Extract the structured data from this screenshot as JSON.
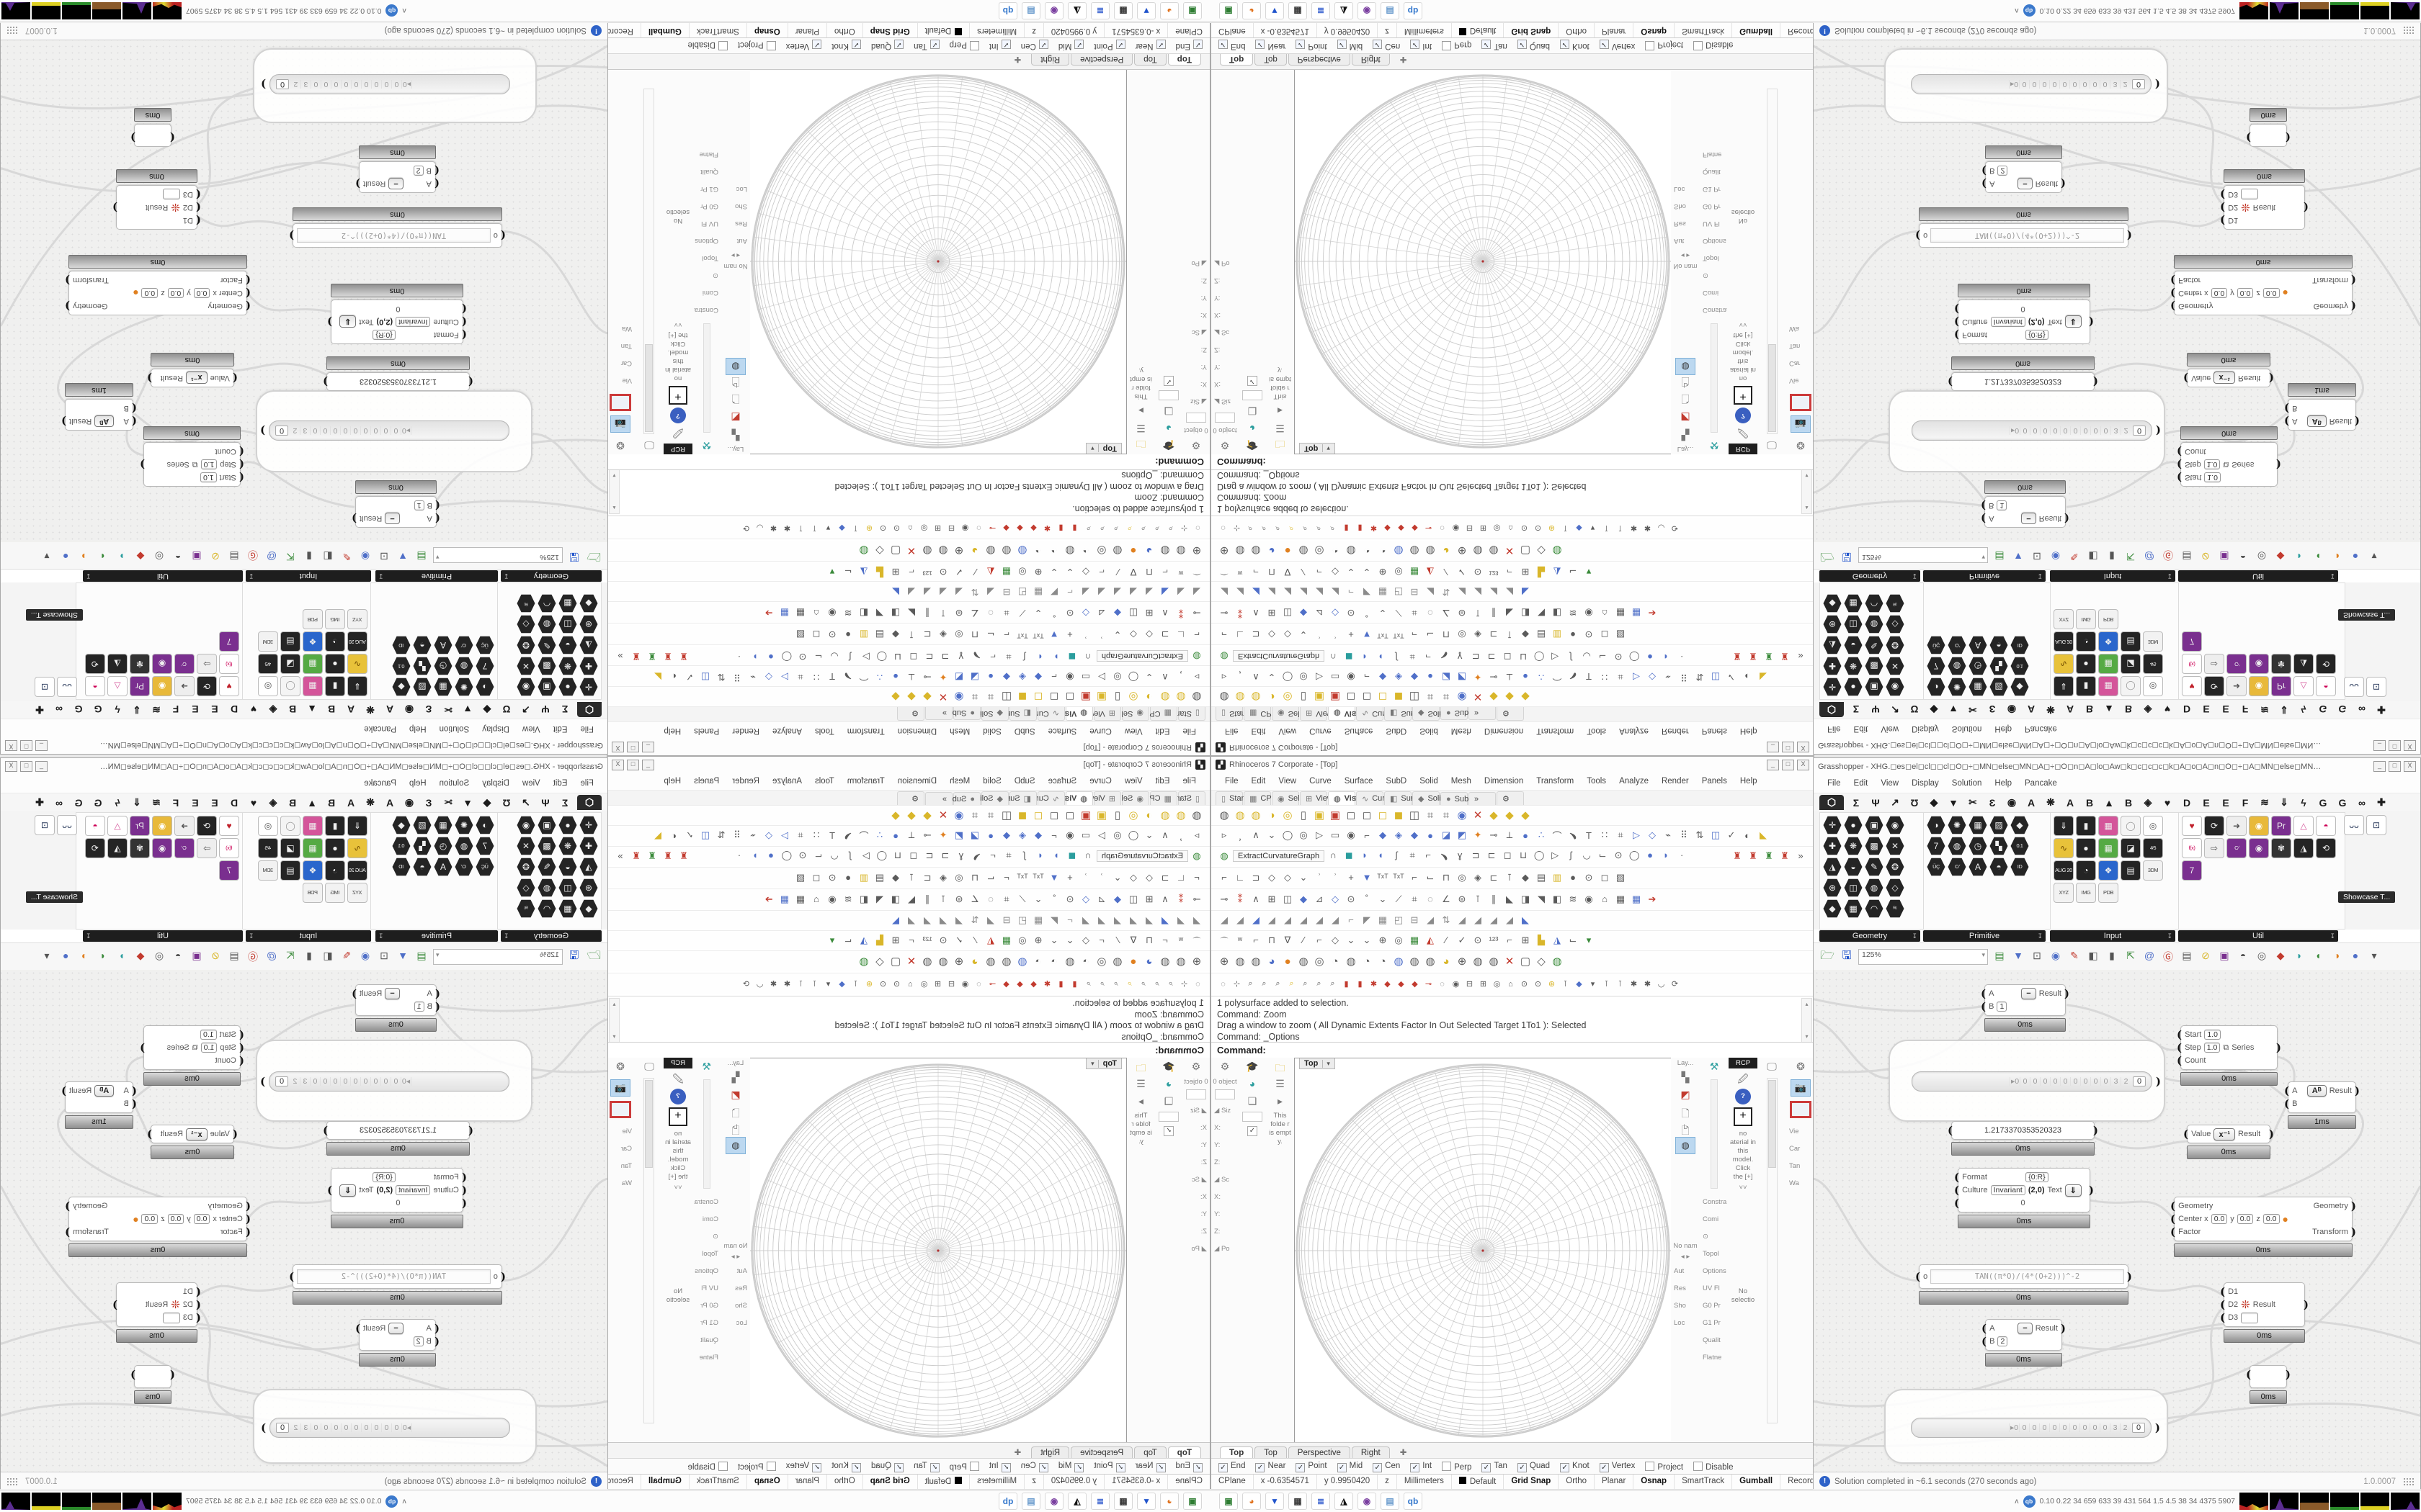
{
  "colors": {
    "b": "#4f6fc8",
    "y": "#d9b62a",
    "r": "#c23a2e",
    "g": "#3a8a3a",
    "o": "#e08020",
    "p": "#7a2f8f",
    "t": "#2a9d9d",
    "k": "#111111",
    "w": "#888888",
    "accent_blue": "#3b79cc",
    "panel_dark": "#1e1e1e",
    "status_enabled": "#111111",
    "wire": "#d8d8d8",
    "sphere_line": "#cbcbcb"
  },
  "rhino": {
    "title": "Rhinoceros 7 Corporate - [Top]",
    "window_buttons": {
      "min": "_",
      "max": "□",
      "close": "X"
    },
    "menu": [
      "File",
      "Edit",
      "View",
      "Curve",
      "Surface",
      "SubD",
      "Solid",
      "Mesh",
      "Dimension",
      "Transform",
      "Tools",
      "Analyze",
      "Render",
      "Panels",
      "Help"
    ],
    "toolbar_tabs": [
      {
        "pre": "▯",
        "t": "Standard"
      },
      {
        "pre": "▦",
        "t": "CPlanes"
      },
      {
        "pre": "◉",
        "t": "Select"
      },
      {
        "pre": "⊞",
        "t": "Viewport Layout"
      },
      {
        "pre": "◍",
        "t": "Visibility",
        "cls": "active"
      },
      {
        "pre": "∿",
        "t": "Curve Tools"
      },
      {
        "pre": "◧",
        "t": "Surface Tools"
      },
      {
        "pre": "◆",
        "t": "Solid Tools"
      },
      {
        "pre": "●",
        "t": "SubD"
      },
      {
        "t": "»"
      },
      {
        "t": "⚙"
      }
    ],
    "icon_rows": {
      "bulbs": [
        "◍",
        "y:◍",
        "y:◍",
        "y:◑",
        "y:◎",
        "▯",
        "y:▣",
        "r:▣",
        "◻",
        "◻",
        "y:◻",
        "y:◼",
        "◫",
        "⌗",
        "⌗",
        "b:◉",
        "r:✕",
        "y:◆",
        "y:◆",
        "y:◆"
      ],
      "rowA": [
        "▹",
        "﹐",
        "∧",
        "⌄",
        "◯",
        "◎",
        "▷",
        "▭",
        "◉",
        "⌐",
        "b:◆",
        "b:◈",
        "b:◆",
        "b:●",
        "b:◪",
        "b:◩",
        "o:✦",
        "⊸",
        "⟂",
        "b:●",
        "b:∴",
        "⌒",
        "﹅",
        "T",
        "∷",
        "⌗",
        "b:▷",
        "b:◇",
        "⌁",
        "⠿",
        "⇅",
        "b:◫",
        "✓",
        "◐",
        "y:◣"
      ],
      "rowB": [
        "∩",
        "t:◼",
        "b:◗",
        "b:◖",
        "ʃ",
        "⌗",
        "⌐",
        "﹅",
        "ɣ",
        "⊐",
        "⊏",
        "◻",
        "⊔",
        "◯",
        "▷",
        "ʃ",
        "◡",
        "⌙",
        "⊙",
        "◯",
        "b:●",
        "b:◗",
        "·"
      ],
      "rowB_end": [
        "r:♜",
        "r:♜",
        "g:♜",
        "r:♜",
        "»"
      ],
      "rowC": [
        "⌐",
        "∟",
        "⊐",
        "◇",
        "◇",
        "⌄",
        "ʾ",
        "ʾ",
        "+",
        "b:▼",
        "ᵀˣᵀ",
        "ᵀˣᵀ",
        "⌐",
        "⌙",
        "⊓",
        "◎",
        "◈",
        "⊏",
        "⊺",
        "◆",
        "▤",
        "y:▥",
        "●",
        "⊙",
        "◻",
        "▧"
      ],
      "rowD": [
        "⊸",
        "r:⁑",
        "∧",
        "⊞",
        "◫",
        "b:◆",
        "⊿",
        "b:◇",
        "⊙",
        "˚",
        "⌄",
        "⟋",
        "⌗",
        "◌",
        "∠",
        "⊜",
        "⊺",
        "∥",
        "◣",
        "◨",
        "◥",
        "◧",
        "≋",
        "◉",
        "⌂",
        "▦",
        "b:▦",
        "r:➔"
      ],
      "rowE": [
        "◢",
        "◢",
        "b:◢",
        "◢",
        "◢",
        "◢",
        "◢",
        "◢",
        "⌐",
        "◤",
        "▦",
        "◰",
        "⊟",
        "◢",
        "⇅",
        "◢",
        "◢",
        "◢",
        "◢",
        "b:◣"
      ],
      "rowF": [
        "᷍",
        "ʷ",
        "⌐",
        "⊓",
        "∇",
        "⁄",
        "⌐",
        "◇",
        "⌄",
        "⌄",
        "⊕",
        "◎",
        "g:▦",
        "r:◭",
        "⁄",
        "✓",
        "⊙",
        "¹²³",
        "⌐",
        "⊞",
        "y:▙",
        "b:◮",
        "⌙",
        "g:▾"
      ],
      "rowG": [
        "⊕",
        "◍",
        "◍",
        "b:◕",
        "o:●",
        "◍",
        "◎",
        "◔",
        "◍",
        "◔",
        "◔",
        "b:◍",
        "◍",
        "◍",
        "y:◕",
        "⊕",
        "◍",
        "◍",
        "r:✕",
        "▢",
        "◇",
        "g:◍"
      ],
      "rowH": [
        "◌",
        "⊹",
        "⌕",
        "⌕",
        "⌕",
        "y:⌕",
        "⌕",
        "⌕",
        "⌕",
        "r:▮",
        "r:▮",
        "r:✱",
        "r:◆",
        "r:◆",
        "r:◆",
        "r:⊸",
        "◌",
        "◉",
        "⊟",
        "⊞",
        "◎",
        "⌂",
        "⊙",
        "⊙",
        "y:⊛",
        "⊺",
        "b:◆",
        "▾",
        "⊺",
        "⊺",
        "✱",
        "✱",
        "◡",
        "⟳"
      ]
    },
    "ecg_label": "ExtractCurvatureGraph",
    "command": {
      "history": [
        "1 polysurface added to selection.",
        "Command: Zoom",
        "Drag a window to zoom ( All  Dynamic  Extents  Factor  In  Out  Selected  Target  1To1 ): Selected",
        "Command: _Options"
      ],
      "prompt": "Command:"
    },
    "left_panels": {
      "p1_header": "0 object",
      "p1_rows": [
        "◢ Siz",
        "X:",
        "Y:",
        "Z:",
        "◢ Sc",
        "X:",
        "Y:",
        "Z:",
        "◢ Po"
      ],
      "p2_check": "✓",
      "p3_text": "This folde r is empt y."
    },
    "right_panels": {
      "rp1_title": "Lay...",
      "rp1_l": "L",
      "rp1_noname": "No nam",
      "rp1_checks": [
        "Aut",
        "Res",
        "Sho",
        "Loc"
      ],
      "rp2_rows": [
        "Constra",
        "Comi",
        "⊙",
        "Topol",
        "Options",
        "UV Fl",
        "G0 Pr",
        "G1 Pr",
        "Qualit",
        "Flatne"
      ],
      "rp3_title": "RCP",
      "rp3_note": "no aterial in this model. Click the [+]",
      "rp3_more": "˅˅",
      "rp3_sel": "No selectio",
      "rp5_rows": [
        "Vie",
        "Car",
        "Tan",
        "Wa"
      ],
      "name_chip": "name"
    },
    "viewport": {
      "tab": "Top",
      "tab_caret": "▾"
    },
    "viewport_tabs": [
      {
        "t": "Top",
        "cls": "active"
      },
      {
        "t": "Top"
      },
      {
        "t": "Perspective"
      },
      {
        "t": "Right"
      },
      {
        "t": "✚",
        "cls": "plus"
      }
    ],
    "osnap": [
      {
        "t": "End",
        "cls": "on"
      },
      {
        "t": "Near",
        "cls": "on"
      },
      {
        "t": "Point",
        "cls": "on"
      },
      {
        "t": "Mid",
        "cls": "on"
      },
      {
        "t": "Cen",
        "cls": "on"
      },
      {
        "t": "Int",
        "cls": "on"
      },
      {
        "t": "Perp"
      },
      {
        "t": "Tan",
        "cls": "on"
      },
      {
        "t": "Quad",
        "cls": "on"
      },
      {
        "t": "Knot",
        "cls": "on"
      },
      {
        "t": "Vertex",
        "cls": "on"
      },
      {
        "t": "Project"
      },
      {
        "t": "Disable"
      }
    ],
    "status_fields": [
      {
        "t": "CPlane"
      },
      {
        "t": "x -0.6354571"
      },
      {
        "t": "y 0.9950420"
      },
      {
        "t": "z"
      },
      {
        "t": "Millimeters"
      },
      {
        "t": "Default",
        "cls": "swatch"
      },
      {
        "t": "Grid Snap",
        "cls": "bold"
      },
      {
        "t": "Ortho"
      },
      {
        "t": "Planar"
      },
      {
        "t": "Osnap",
        "cls": "bold"
      },
      {
        "t": "SmartTrack"
      },
      {
        "t": "Gumball",
        "cls": "bold"
      },
      {
        "t": "Record History"
      },
      {
        "t": "Filter"
      },
      {
        "t": "A"
      }
    ]
  },
  "gh": {
    "title": "Grasshopper - XHG.◻es◻el◻cl◻◻cl◻O◻÷◻MN◻else◻MN◻A◻÷◻O◻n◻A◻lo◻Aw◻k◻c◻c◻c◻k◻A◻o◻A◻n◻O◻÷◻A◻MN◻else◻MN◻÷◻O◻cl◻w◻cl◻n◻seles◻*",
    "menu": [
      "File",
      "Edit",
      "View",
      "Display",
      "Solution",
      "Help",
      "Pancake"
    ],
    "tab_glyphs": [
      {
        "t": "⬡",
        "cls": "active"
      },
      {
        "t": "Σ"
      },
      {
        "t": "Ψ"
      },
      {
        "t": "↗"
      },
      {
        "t": "Ʊ"
      },
      {
        "t": "◆"
      },
      {
        "t": "▼"
      },
      {
        "t": "✂"
      },
      {
        "t": "Ɛ"
      },
      {
        "t": "◉"
      },
      {
        "t": "A"
      },
      {
        "t": "❋"
      },
      {
        "t": "A"
      },
      {
        "t": "B"
      },
      {
        "t": "▲"
      },
      {
        "t": "B"
      },
      {
        "t": "◈"
      },
      {
        "t": "♥"
      },
      {
        "t": "D"
      },
      {
        "t": "E"
      },
      {
        "t": "E"
      },
      {
        "t": "F"
      },
      {
        "t": "≋"
      },
      {
        "t": "⇓"
      },
      {
        "t": "ϟ"
      },
      {
        "t": "G"
      },
      {
        "t": "G"
      },
      {
        "t": "∞"
      },
      {
        "t": "✚"
      }
    ],
    "palette": {
      "geometry": [
        {
          "t": "✛",
          "cls": "hex"
        },
        {
          "t": "●",
          "cls": "hex"
        },
        {
          "t": "▣",
          "cls": "hex"
        },
        {
          "t": "◉",
          "cls": "hex"
        },
        {
          "t": "✚",
          "cls": "hex"
        },
        {
          "t": "❋",
          "cls": "hex"
        },
        {
          "t": "▩",
          "cls": "hex"
        },
        {
          "t": "✕",
          "cls": "hex"
        },
        {
          "t": "◮",
          "cls": "hex"
        },
        {
          "t": "◒",
          "cls": "hex"
        },
        {
          "t": "✎",
          "cls": "hex"
        },
        {
          "t": "❂",
          "cls": "hex"
        },
        {
          "t": "⊛",
          "cls": "hex"
        },
        {
          "t": "◫",
          "cls": "hex"
        },
        {
          "t": "◍",
          "cls": "hex"
        },
        {
          "t": "◇",
          "cls": "hex"
        },
        {
          "t": "◆",
          "cls": "hex"
        },
        {
          "t": "▦",
          "cls": "hex"
        },
        {
          "t": "◠",
          "cls": "hex"
        },
        {
          "t": "ᴿᶜ",
          "cls": "hex small"
        }
      ],
      "primitive": [
        {
          "t": "◑",
          "cls": "hex"
        },
        {
          "t": "✺",
          "cls": "hex"
        },
        {
          "t": "▦",
          "cls": "hex"
        },
        {
          "t": "▨",
          "cls": "hex"
        },
        {
          "t": "◆",
          "cls": "hex"
        },
        {
          "t": "7",
          "cls": "hex"
        },
        {
          "t": "◍",
          "cls": "hex"
        },
        {
          "t": "◷",
          "cls": "hex"
        },
        {
          "t": "▚",
          "cls": "hex"
        },
        {
          "t": "0.1",
          "cls": "hex small"
        },
        {
          "t": "ÜÇ",
          "cls": "hex small"
        },
        {
          "t": "C∕",
          "cls": "hex small"
        },
        {
          "t": "A",
          "cls": "hex"
        },
        {
          "t": "◓",
          "cls": "hex"
        },
        {
          "t": "ID",
          "cls": "hex small"
        }
      ],
      "input": [
        {
          "t": "⇓",
          "cls": "sq"
        },
        {
          "t": "▮",
          "cls": "sq"
        },
        {
          "t": "▦",
          "cls": "sq",
          "bg": "#d4559a"
        },
        {
          "t": "◯",
          "cls": "sq",
          "bg": "#f4f4f4",
          "c": "#999999"
        },
        {
          "t": "◎",
          "cls": "sq",
          "bg": "#ffffff",
          "c": "#555555"
        },
        {
          "t": "∿",
          "cls": "sq",
          "bg": "#e8c23a",
          "c": "#704c00"
        },
        {
          "t": "●",
          "cls": "sq"
        },
        {
          "t": "▦",
          "cls": "sq",
          "bg": "#55aa44"
        },
        {
          "t": "◪",
          "cls": "sq"
        },
        {
          "t": "4∕5",
          "cls": "sq small"
        },
        {
          "t": "AUG 20",
          "cls": "sq small"
        },
        {
          "t": "◔",
          "cls": "sq"
        },
        {
          "t": "❖",
          "cls": "sq",
          "bg": "#2a66cc"
        },
        {
          "t": "▤",
          "cls": "sq"
        },
        {
          "t": "3DM",
          "cls": "sq small",
          "bg": "#f2f2f2",
          "c": "#444444"
        },
        {
          "t": "XYZ",
          "cls": "sq small",
          "bg": "#f2f2f2",
          "c": "#444444"
        },
        {
          "t": "IMG",
          "cls": "sq small",
          "bg": "#f2f2f2",
          "c": "#444444"
        },
        {
          "t": "PDB",
          "cls": "sq small",
          "bg": "#f2f2f2",
          "c": "#444444"
        }
      ],
      "util": [
        {
          "t": "♥",
          "cls": "sq",
          "bg": "#ffffff",
          "c": "#c0202a"
        },
        {
          "t": "⟳",
          "cls": "sq"
        },
        {
          "t": "➜",
          "cls": "sq",
          "bg": "#eeeeee",
          "c": "#555555"
        },
        {
          "t": "◉",
          "cls": "sq",
          "bg": "#e8b93a",
          "c": "#ffffff"
        },
        {
          "t": "Pr",
          "cls": "sq",
          "bg": "#7a2f8f"
        },
        {
          "t": "△",
          "cls": "sq",
          "bg": "#ffffff",
          "c": "#d4559a"
        },
        {
          "t": "◓",
          "cls": "sq",
          "bg": "#ffffff",
          "c": "#cc0055"
        },
        {
          "t": "f(x)",
          "cls": "sq small",
          "bg": "#ffffff",
          "c": "#cc0055"
        },
        {
          "t": "⇨",
          "cls": "sq",
          "bg": "#eeeeee",
          "c": "#555555"
        },
        {
          "t": "C∕",
          "cls": "sq small",
          "bg": "#7a2f8f"
        },
        {
          "t": "◉",
          "cls": "sq",
          "bg": "#7a2f8f"
        },
        {
          "t": "✾",
          "cls": "sq",
          "bg": "#333333"
        },
        {
          "t": "◮",
          "cls": "sq"
        },
        {
          "t": "⟲",
          "cls": "sq"
        },
        {
          "t": "7",
          "cls": "sq",
          "bg": "#7a2f8f"
        }
      ],
      "showcase": [
        {
          "t": "ᴗᴗ",
          "cls": "sq",
          "bg": "#ffffff",
          "c": "#223355"
        },
        {
          "t": "⊡",
          "cls": "sq",
          "bg": "#ffffff",
          "c": "#223355"
        }
      ],
      "labels": [
        "Geometry",
        "Primitive",
        "Input",
        "Util"
      ],
      "showcase_badge": "Showcase T..."
    },
    "toolbar": {
      "zoom": "125%",
      "icons": [
        "g:▤",
        "b:▼",
        "⊡",
        "b:◉",
        "r:✎",
        "◧",
        "▮",
        "g:⇱",
        "b:@",
        "r:Ⓖ",
        "▤",
        "y:⊘",
        "p:▣",
        "◓",
        "◎",
        "r:◆",
        "t:◗",
        "g:◖",
        "o:◑",
        "b:●",
        "▾"
      ]
    },
    "nodes": {
      "sub1": {
        "a": "A",
        "b": "B",
        "bval": "1",
        "op": "−",
        "out": "Result",
        "ms": "0ms"
      },
      "sub2": {
        "a": "A",
        "b": "B",
        "bval": "2",
        "op": "−",
        "out": "Result",
        "ms": "0ms"
      },
      "series": {
        "in1": "Start",
        "v1": "1.0",
        "in2": "Step",
        "v2": "1.0",
        "in3": "Count",
        "icon": "⧉",
        "out": "Series",
        "ms": "0ms"
      },
      "power": {
        "a": "A",
        "b": "B",
        "icon": "Aᴮ",
        "out": "Result",
        "ms": "1ms"
      },
      "value_panel": {
        "text": "1.2173370353520323",
        "ms": "0ms"
      },
      "inverse": {
        "in": "Value",
        "icon": "x⁻¹",
        "out": "Result",
        "ms": "0ms"
      },
      "format": {
        "f": "Format",
        "fval": "{0:R}",
        "c": "Culture",
        "cval": "Invariant",
        "extra": "(2,0)",
        "t": "Text",
        "ticon": "⇓",
        "zero": "0",
        "ms": "0ms"
      },
      "scale": {
        "in1": "Geometry",
        "cpre": "Center x",
        "v1": "0.0",
        "vy": "y",
        "v2": "0.0",
        "vz": "z",
        "v3": "0.0",
        "icon": "●",
        "in3": "Factor",
        "out1": "Geometry",
        "out2": "Transform",
        "ms": "0ms"
      },
      "expr": {
        "in": "o",
        "text": "TAN((π*O)/(4*(O+2)))^-2",
        "ms": "0ms"
      },
      "disp": {
        "d1": "D1",
        "d2": "D2",
        "d3": "D3",
        "icon": "❊",
        "out": "Result",
        "ms": "0ms"
      },
      "tiny": {
        "ms": "0ms"
      },
      "slider": {
        "digits": [
          "▸0",
          "0",
          "0",
          "0",
          "0",
          "0",
          "0",
          "0",
          "0",
          "0",
          "3",
          "2"
        ],
        "last": "0"
      }
    },
    "status": {
      "message": "Solution completed in ~6.1 seconds (270 seconds ago)",
      "version": "1.0.0007",
      "info": "!"
    }
  },
  "taskbar": {
    "apps": [
      {
        "t": "▣",
        "c": "#2e7d32"
      },
      {
        "t": "◕",
        "c": "#e0701a"
      },
      {
        "t": "▼",
        "c": "#2255cc"
      },
      {
        "t": "▦",
        "c": "#3a3a3a"
      },
      {
        "t": "≣",
        "c": "#4a6fd4"
      },
      {
        "t": "◮",
        "c": "#111111"
      },
      {
        "t": "◉",
        "c": "#7a3fa0"
      },
      {
        "t": "▤",
        "c": "#6699cc"
      },
      {
        "t": "qb",
        "c": "#3377cc"
      }
    ],
    "tray": {
      "chevron": "ᴧ",
      "qb": "qb",
      "numbers": "0.10 0.22   34   659   633   39   431   564   1.5   4.5   38   34   4375 5907"
    }
  }
}
